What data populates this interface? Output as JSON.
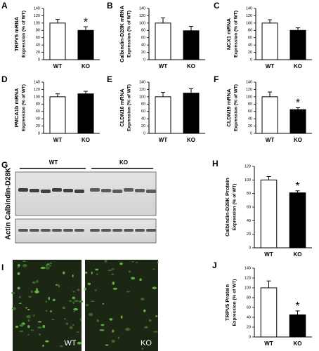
{
  "chart_data": [
    {
      "type": "bar",
      "panel": "A",
      "ylabel": [
        "TRPV5 mRNA",
        "Expression (% of WT)"
      ],
      "categories": [
        "WT",
        "KO"
      ],
      "values": [
        100,
        80
      ],
      "errors": [
        10,
        10
      ],
      "colors": [
        "#ffffff",
        "#000000"
      ],
      "ylim": [
        0,
        140
      ],
      "yticks": [
        0,
        20,
        40,
        60,
        80,
        100,
        120,
        140
      ],
      "annotations": [
        {
          "text": "*",
          "category": "KO"
        }
      ]
    },
    {
      "type": "bar",
      "panel": "B",
      "ylabel": [
        "Calbindin-D28K mRNA",
        "Expression (% of WT)"
      ],
      "categories": [
        "WT",
        "KO"
      ],
      "values": [
        100,
        79
      ],
      "errors": [
        14,
        12
      ],
      "colors": [
        "#ffffff",
        "#000000"
      ],
      "ylim": [
        0,
        140
      ],
      "yticks": [
        0,
        20,
        40,
        60,
        80,
        100,
        120,
        140
      ]
    },
    {
      "type": "bar",
      "panel": "C",
      "ylabel": [
        "NCX1 mRNA",
        "Expression (% of WT)"
      ],
      "categories": [
        "WT",
        "KO"
      ],
      "values": [
        100,
        80
      ],
      "errors": [
        9,
        7
      ],
      "colors": [
        "#ffffff",
        "#000000"
      ],
      "ylim": [
        0,
        140
      ],
      "yticks": [
        0,
        20,
        40,
        60,
        80,
        100,
        120,
        140
      ]
    },
    {
      "type": "bar",
      "panel": "D",
      "ylabel": [
        "PMCA1b mRNA",
        "Expression (% of WT)"
      ],
      "categories": [
        "WT",
        "KO"
      ],
      "values": [
        100,
        108
      ],
      "errors": [
        8,
        7
      ],
      "colors": [
        "#ffffff",
        "#000000"
      ],
      "ylim": [
        0,
        140
      ],
      "yticks": [
        0,
        20,
        40,
        60,
        80,
        100,
        120,
        140
      ]
    },
    {
      "type": "bar",
      "panel": "E",
      "ylabel": [
        "CLDN16 mRNA",
        "Expression (% of WT)"
      ],
      "categories": [
        "WT",
        "KO"
      ],
      "values": [
        100,
        110
      ],
      "errors": [
        12,
        12
      ],
      "colors": [
        "#ffffff",
        "#000000"
      ],
      "ylim": [
        0,
        140
      ],
      "yticks": [
        0,
        20,
        40,
        60,
        80,
        100,
        120,
        140
      ]
    },
    {
      "type": "bar",
      "panel": "F",
      "ylabel": [
        "CLDN19 mRNA",
        "Expression (% of WT)"
      ],
      "categories": [
        "WT",
        "KO"
      ],
      "values": [
        100,
        65
      ],
      "errors": [
        13,
        5
      ],
      "colors": [
        "#ffffff",
        "#000000"
      ],
      "ylim": [
        0,
        140
      ],
      "yticks": [
        0,
        20,
        40,
        60,
        80,
        100,
        120,
        140
      ],
      "annotations": [
        {
          "text": "*",
          "category": "KO"
        }
      ]
    },
    {
      "type": "bar",
      "panel": "H",
      "ylabel": [
        "Calbindin-D28K Protein",
        "Expression (% of WT)"
      ],
      "categories": [
        "WT",
        "KO"
      ],
      "values": [
        100,
        81
      ],
      "errors": [
        5,
        3
      ],
      "colors": [
        "#ffffff",
        "#000000"
      ],
      "ylim": [
        0,
        120
      ],
      "yticks": [
        0,
        20,
        40,
        60,
        80,
        100,
        120
      ],
      "annotations": [
        {
          "text": "*",
          "category": "KO"
        }
      ]
    },
    {
      "type": "bar",
      "panel": "J",
      "ylabel": [
        "TRPV5 Protein",
        "Expression (% of WT)"
      ],
      "categories": [
        "WT",
        "KO"
      ],
      "values": [
        100,
        45
      ],
      "errors": [
        14,
        8
      ],
      "colors": [
        "#ffffff",
        "#000000"
      ],
      "ylim": [
        0,
        140
      ],
      "yticks": [
        0,
        20,
        40,
        60,
        80,
        100,
        120,
        140
      ],
      "annotations": [
        {
          "text": "*",
          "category": "KO"
        }
      ]
    }
  ],
  "blot": {
    "panel": "G",
    "groups": [
      "WT",
      "KO"
    ],
    "rows": [
      "Calbindin-D28K",
      "Actin"
    ]
  },
  "micrograph": {
    "panel": "I",
    "labels": [
      "WT",
      "KO"
    ]
  }
}
